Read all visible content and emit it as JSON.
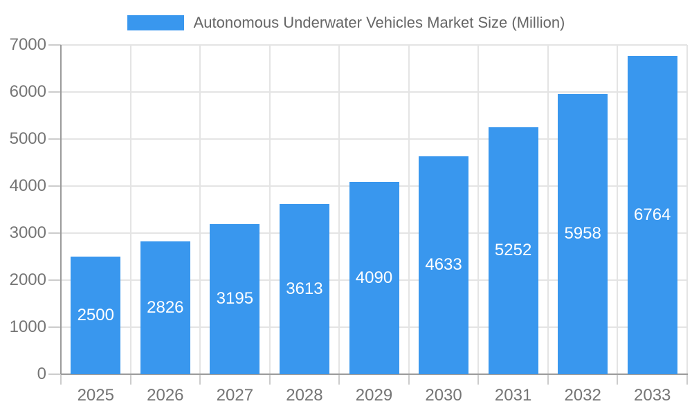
{
  "legend": {
    "label": "Autonomous Underwater Vehicles Market Size (Million)"
  },
  "chart_data": {
    "type": "bar",
    "title": "Autonomous Underwater Vehicles Market Size (Million)",
    "series_name": "Autonomous Underwater Vehicles Market Size (Million)",
    "categories": [
      "2025",
      "2026",
      "2027",
      "2028",
      "2029",
      "2030",
      "2031",
      "2032",
      "2033"
    ],
    "values": [
      2500,
      2826,
      3195,
      3613,
      4090,
      4633,
      5252,
      5958,
      6764
    ],
    "xlabel": "",
    "ylabel": "",
    "ylim": [
      0,
      7000
    ],
    "ytick_step": 1000,
    "ytick_labels": [
      "0",
      "1000",
      "2000",
      "3000",
      "4000",
      "5000",
      "6000",
      "7000"
    ],
    "grid": "on",
    "legend_position": "top-center",
    "value_labels": "inside-center-white",
    "colors": {
      "bar": "#3997EE",
      "bar_label": "#FFFFFF",
      "grid": "#E4E4E4",
      "tick": "#CCCCCC",
      "axis": "#9B9B9B",
      "tick_label": "#757575",
      "legend_text": "#666666",
      "background": "#FFFFFF"
    }
  }
}
